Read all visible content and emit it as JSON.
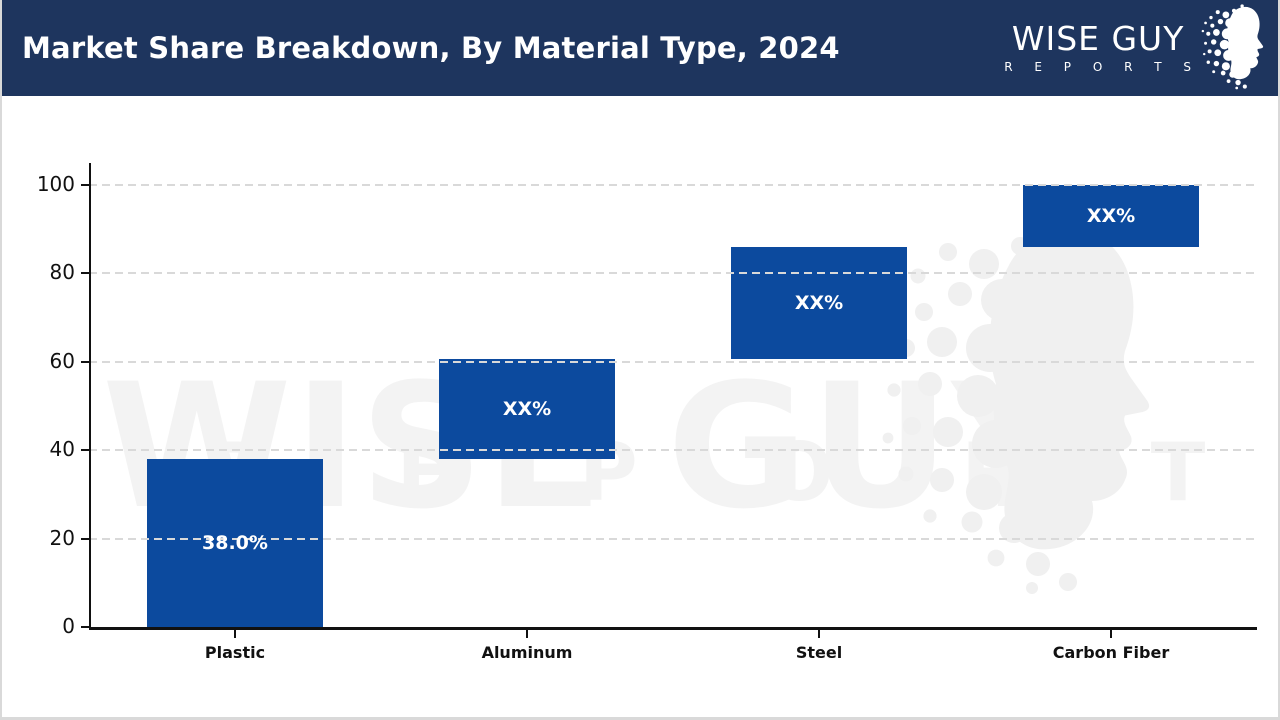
{
  "header": {
    "title": "Market Share Breakdown, By Material Type, 2024",
    "logo": {
      "line1": "WISE GUY",
      "line2": "R E P O R T S"
    }
  },
  "watermark": {
    "line1": "WISE GUY",
    "line2": "R E P O R T S"
  },
  "colors": {
    "header_bg": "#1e355e",
    "bar": "#0c4a9e",
    "bar_label": "#ffffff",
    "gridline": "#d9d9d9",
    "axis": "#111111",
    "watermark": "#f3f3f3"
  },
  "chart_data": {
    "type": "bar",
    "subtype": "waterfall",
    "title": "Market Share Breakdown, By Material Type, 2024",
    "xlabel": "",
    "ylabel": "",
    "categories": [
      "Plastic",
      "Aluminum",
      "Steel",
      "Carbon Fiber"
    ],
    "segments": [
      {
        "category": "Plastic",
        "start": 0,
        "end": 38,
        "label": "38.0%"
      },
      {
        "category": "Aluminum",
        "start": 38,
        "end": 60.7,
        "label": "XX%"
      },
      {
        "category": "Steel",
        "start": 60.7,
        "end": 86,
        "label": "XX%"
      },
      {
        "category": "Carbon Fiber",
        "start": 86,
        "end": 100,
        "label": "XX%"
      }
    ],
    "ylim": [
      0,
      100
    ],
    "yticks": [
      0,
      20,
      40,
      60,
      80,
      100
    ],
    "grid": "dashed horizontal gridlines drawn above bars",
    "legend": "none",
    "bar_color": "#0c4a9e",
    "label_color": "#ffffff"
  }
}
